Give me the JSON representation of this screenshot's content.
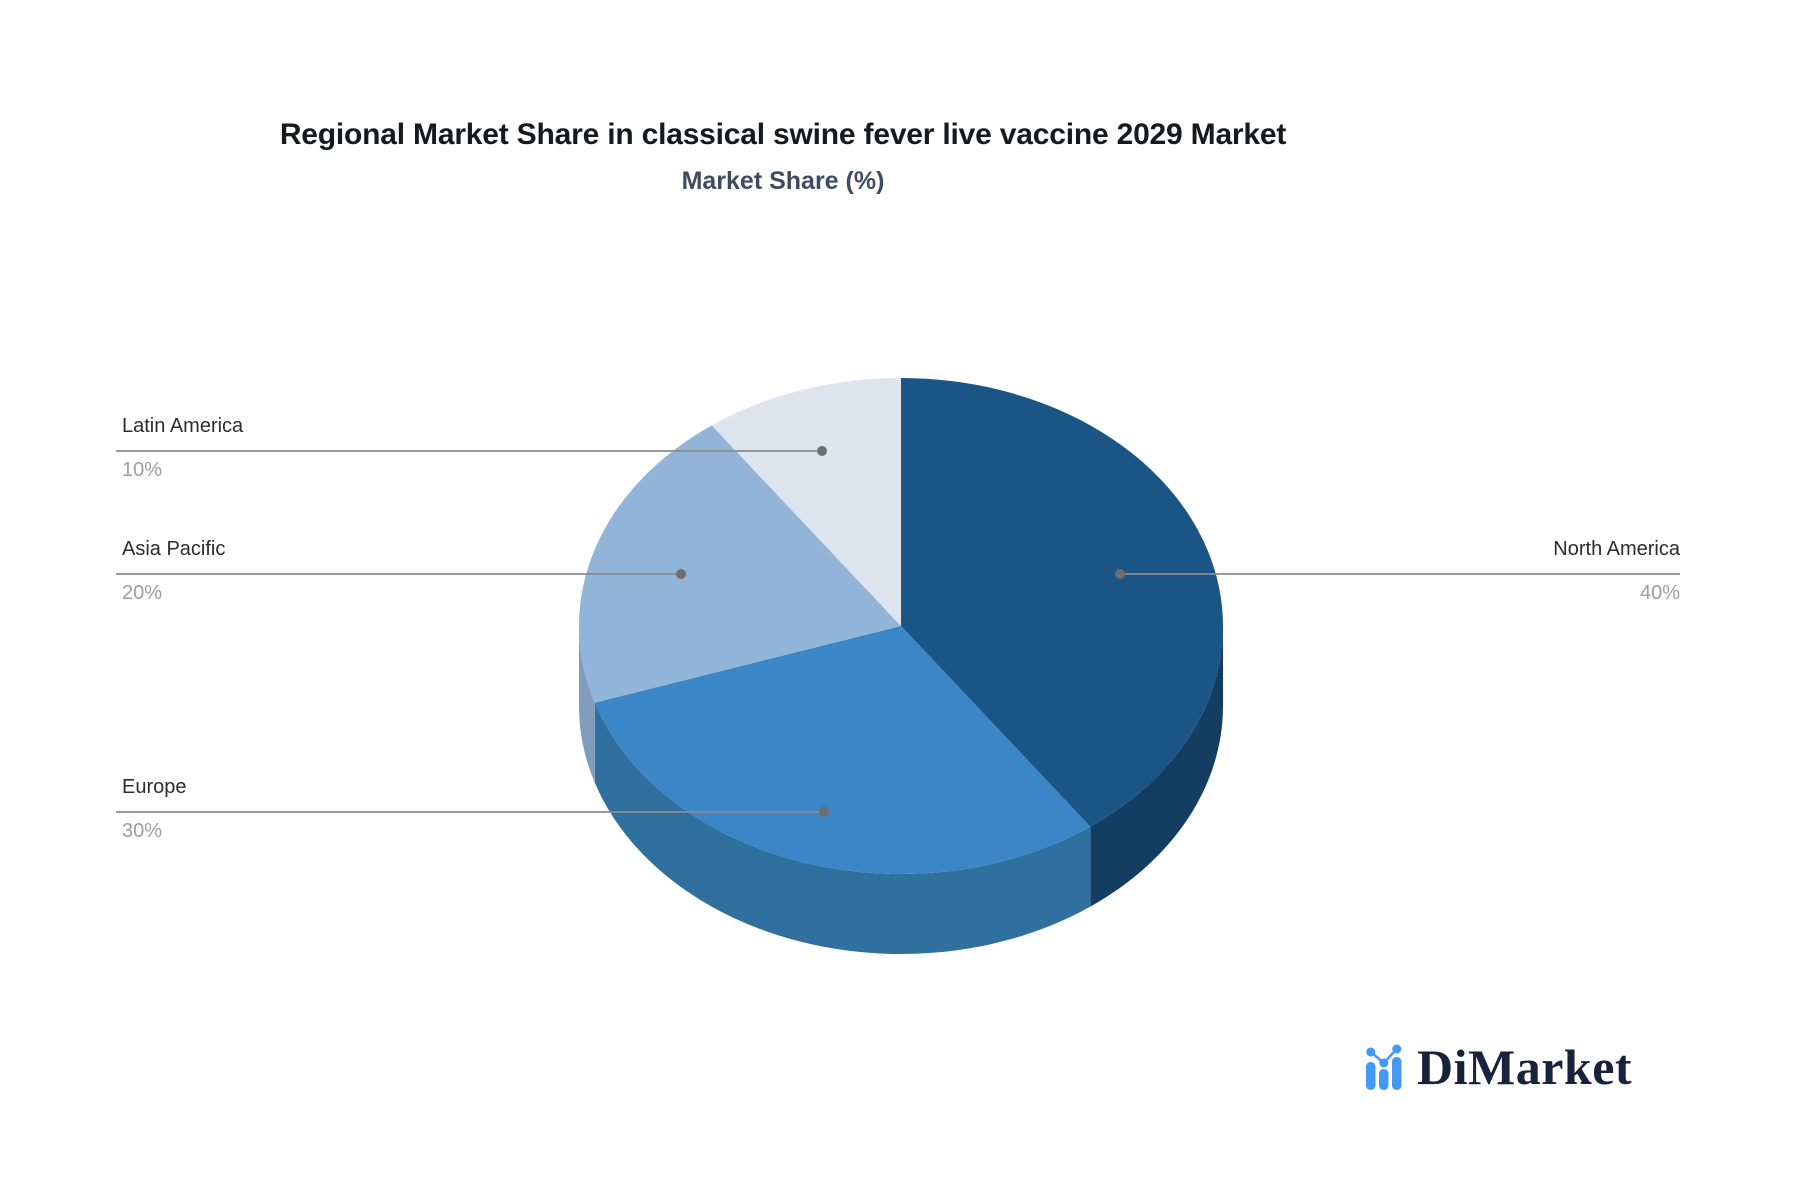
{
  "chart_data": {
    "type": "pie",
    "is_3d": true,
    "title": "Regional Market Share in classical swine fever live vaccine 2029 Market",
    "subtitle": "Market Share (%)",
    "start_angle_deg": 0,
    "direction": "clockwise",
    "categories": [
      "North America",
      "Europe",
      "Asia Pacific",
      "Latin America"
    ],
    "values": [
      40,
      30,
      20,
      10
    ],
    "unit": "%",
    "colors": [
      "#1b5586",
      "#3b86c7",
      "#91b4d8",
      "#dde4ee"
    ],
    "side_colors": [
      "#143e61",
      "#30709f",
      "#7f9dba",
      "#b9c4d4"
    ],
    "leader_line_color": "#8c8c8c",
    "leader_dot_color": "#6e6e6e",
    "legend": "none",
    "labels": [
      {
        "name": "Latin America",
        "value_text": "10%"
      },
      {
        "name": "Asia Pacific",
        "value_text": "20%"
      },
      {
        "name": "Europe",
        "value_text": "30%"
      },
      {
        "name": "North America",
        "value_text": "40%"
      }
    ]
  },
  "logo": {
    "text": "DiMarket",
    "icon": "bar-line-chart-icon",
    "icon_color": "#4598f3",
    "text_color": "#17223c"
  }
}
